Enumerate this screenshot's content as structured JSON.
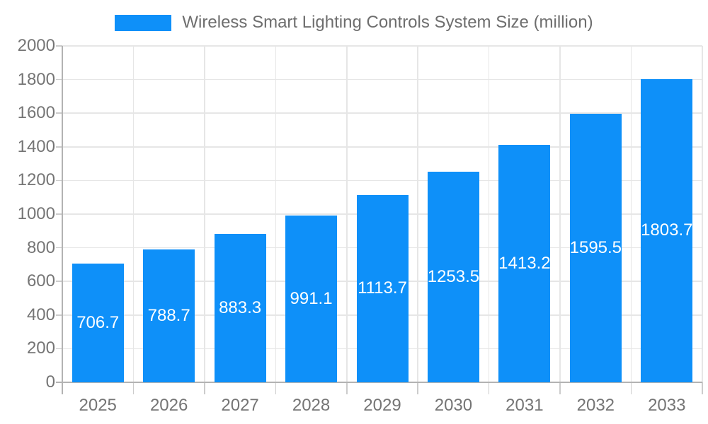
{
  "chart_data": {
    "type": "bar",
    "title": "Wireless Smart Lighting Controls System Size (million)",
    "categories": [
      "2025",
      "2026",
      "2027",
      "2028",
      "2029",
      "2030",
      "2031",
      "2032",
      "2033"
    ],
    "values": [
      706.7,
      788.7,
      883.3,
      991.1,
      1113.7,
      1253.5,
      1413.2,
      1595.5,
      1803.7
    ],
    "value_labels": [
      "706.7",
      "788.7",
      "883.3",
      "991.1",
      "1113.7",
      "1253.5",
      "1413.2",
      "1595.5",
      "1803.7"
    ],
    "ylim": [
      0,
      2000
    ],
    "ytick_step": 200,
    "ytick_labels": [
      "0",
      "200",
      "400",
      "600",
      "800",
      "1000",
      "1200",
      "1400",
      "1600",
      "1800",
      "2000"
    ],
    "grid": true,
    "legend_position": "top-center"
  },
  "colors": {
    "bar": "#0e90f9",
    "grid": "#e6e6e6",
    "axis": "#b3b3b3",
    "tick": "#cccccc",
    "tick_label": "#757575",
    "value_label": "#ffffff",
    "legend_text": "#6e6e6e",
    "background": "#ffffff"
  }
}
